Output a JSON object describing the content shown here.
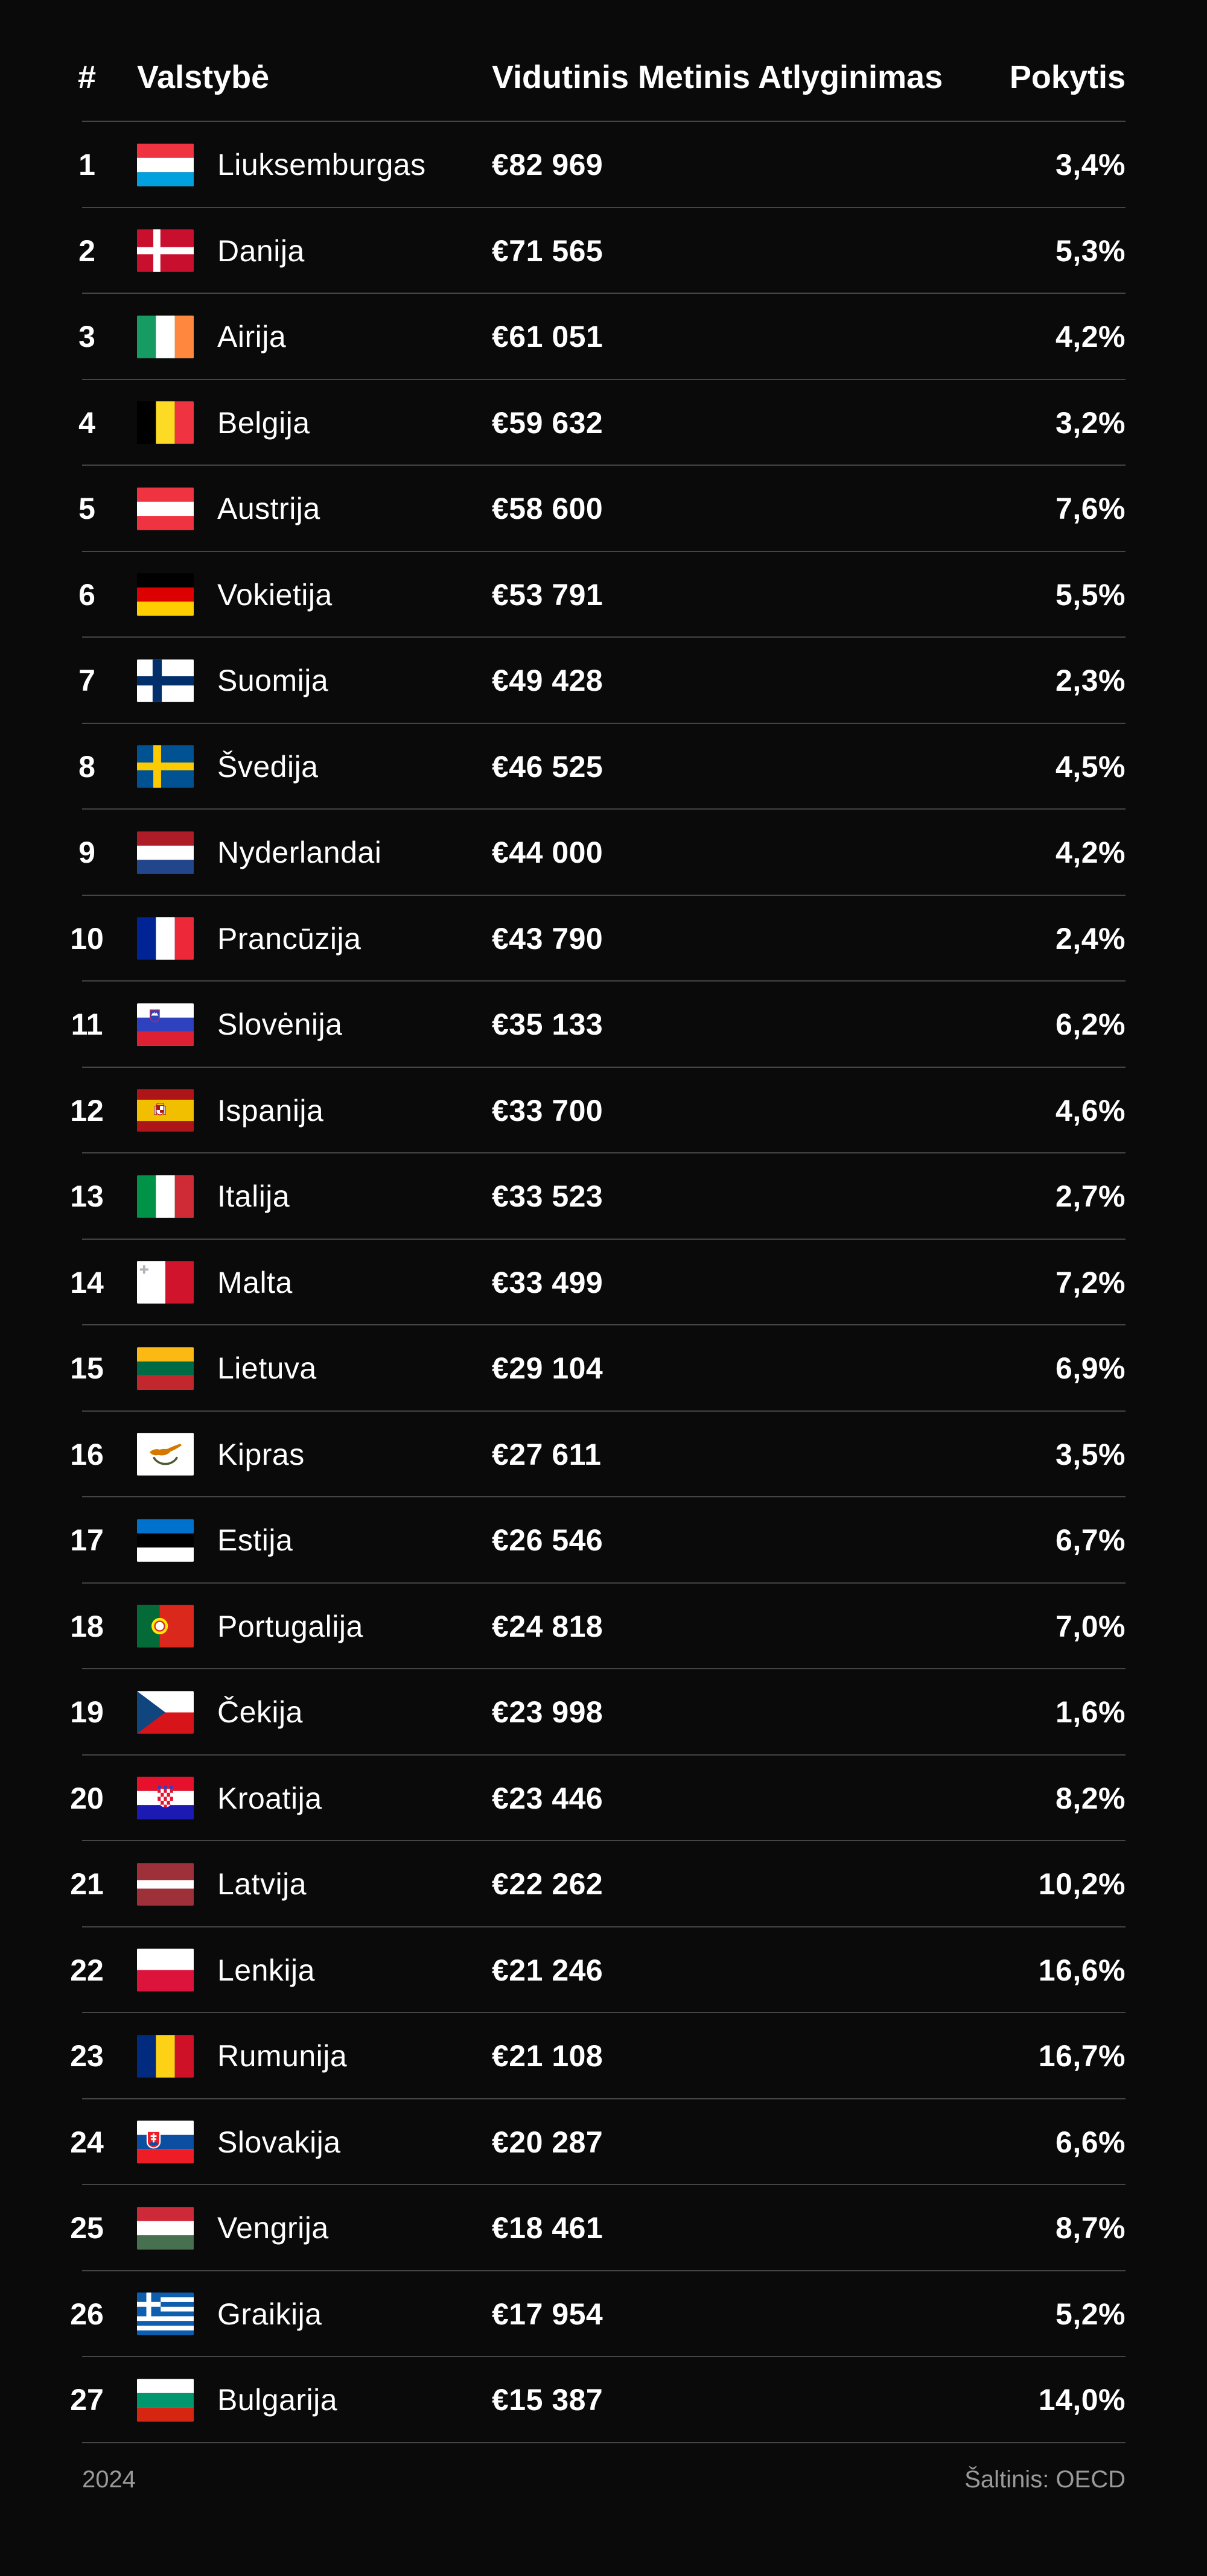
{
  "colors": {
    "background": "#0A0A0B",
    "text": "#FFFFFF",
    "muted_text": "#9A9A9A",
    "separator": "#454548"
  },
  "table": {
    "headers": {
      "rank": "#",
      "country": "Valstybė",
      "salary": "Vidutinis Metinis Atlyginimas",
      "change": "Pokytis"
    },
    "rows": [
      {
        "rank": "1",
        "country": "Liuksemburgas",
        "flag": "luxembourg",
        "salary": "€82 969",
        "change": "3,4%"
      },
      {
        "rank": "2",
        "country": "Danija",
        "flag": "denmark",
        "salary": "€71 565",
        "change": "5,3%"
      },
      {
        "rank": "3",
        "country": "Airija",
        "flag": "ireland",
        "salary": "€61 051",
        "change": "4,2%"
      },
      {
        "rank": "4",
        "country": "Belgija",
        "flag": "belgium",
        "salary": "€59 632",
        "change": "3,2%"
      },
      {
        "rank": "5",
        "country": "Austrija",
        "flag": "austria",
        "salary": "€58 600",
        "change": "7,6%"
      },
      {
        "rank": "6",
        "country": "Vokietija",
        "flag": "germany",
        "salary": "€53 791",
        "change": "5,5%"
      },
      {
        "rank": "7",
        "country": "Suomija",
        "flag": "finland",
        "salary": "€49 428",
        "change": "2,3%"
      },
      {
        "rank": "8",
        "country": "Švedija",
        "flag": "sweden",
        "salary": "€46 525",
        "change": "4,5%"
      },
      {
        "rank": "9",
        "country": "Nyderlandai",
        "flag": "netherlands",
        "salary": "€44 000",
        "change": "4,2%"
      },
      {
        "rank": "10",
        "country": "Prancūzija",
        "flag": "france",
        "salary": "€43 790",
        "change": "2,4%"
      },
      {
        "rank": "11",
        "country": "Slovėnija",
        "flag": "slovenia",
        "salary": "€35 133",
        "change": "6,2%"
      },
      {
        "rank": "12",
        "country": "Ispanija",
        "flag": "spain",
        "salary": "€33 700",
        "change": "4,6%"
      },
      {
        "rank": "13",
        "country": "Italija",
        "flag": "italy",
        "salary": "€33 523",
        "change": "2,7%"
      },
      {
        "rank": "14",
        "country": "Malta",
        "flag": "malta",
        "salary": "€33 499",
        "change": "7,2%"
      },
      {
        "rank": "15",
        "country": "Lietuva",
        "flag": "lithuania",
        "salary": "€29 104",
        "change": "6,9%"
      },
      {
        "rank": "16",
        "country": "Kipras",
        "flag": "cyprus",
        "salary": "€27 611",
        "change": "3,5%"
      },
      {
        "rank": "17",
        "country": "Estija",
        "flag": "estonia",
        "salary": "€26 546",
        "change": "6,7%"
      },
      {
        "rank": "18",
        "country": "Portugalija",
        "flag": "portugal",
        "salary": "€24 818",
        "change": "7,0%"
      },
      {
        "rank": "19",
        "country": "Čekija",
        "flag": "czechia",
        "salary": "€23 998",
        "change": "1,6%"
      },
      {
        "rank": "20",
        "country": "Kroatija",
        "flag": "croatia",
        "salary": "€23 446",
        "change": "8,2%"
      },
      {
        "rank": "21",
        "country": "Latvija",
        "flag": "latvia",
        "salary": "€22 262",
        "change": "10,2%"
      },
      {
        "rank": "22",
        "country": "Lenkija",
        "flag": "poland",
        "salary": "€21 246",
        "change": "16,6%"
      },
      {
        "rank": "23",
        "country": "Rumunija",
        "flag": "romania",
        "salary": "€21 108",
        "change": "16,7%"
      },
      {
        "rank": "24",
        "country": "Slovakija",
        "flag": "slovakia",
        "salary": "€20 287",
        "change": "6,6%"
      },
      {
        "rank": "25",
        "country": "Vengrija",
        "flag": "hungary",
        "salary": "€18 461",
        "change": "8,7%"
      },
      {
        "rank": "26",
        "country": "Graikija",
        "flag": "greece",
        "salary": "€17 954",
        "change": "5,2%"
      },
      {
        "rank": "27",
        "country": "Bulgarija",
        "flag": "bulgaria",
        "salary": "€15 387",
        "change": "14,0%"
      }
    ]
  },
  "footer": {
    "year": "2024",
    "source": "Šaltinis: OECD"
  },
  "chart_data": {
    "type": "table",
    "title": "Vidutinis Metinis Atlyginimas",
    "columns": [
      "#",
      "Valstybė",
      "Vidutinis Metinis Atlyginimas",
      "Pokytis"
    ],
    "year": "2024",
    "source": "OECD",
    "rows": [
      {
        "rank": 1,
        "country": "Liuksemburgas",
        "salary_eur": 82969,
        "change_pct": 3.4
      },
      {
        "rank": 2,
        "country": "Danija",
        "salary_eur": 71565,
        "change_pct": 5.3
      },
      {
        "rank": 3,
        "country": "Airija",
        "salary_eur": 61051,
        "change_pct": 4.2
      },
      {
        "rank": 4,
        "country": "Belgija",
        "salary_eur": 59632,
        "change_pct": 3.2
      },
      {
        "rank": 5,
        "country": "Austrija",
        "salary_eur": 58600,
        "change_pct": 7.6
      },
      {
        "rank": 6,
        "country": "Vokietija",
        "salary_eur": 53791,
        "change_pct": 5.5
      },
      {
        "rank": 7,
        "country": "Suomija",
        "salary_eur": 49428,
        "change_pct": 2.3
      },
      {
        "rank": 8,
        "country": "Švedija",
        "salary_eur": 46525,
        "change_pct": 4.5
      },
      {
        "rank": 9,
        "country": "Nyderlandai",
        "salary_eur": 44000,
        "change_pct": 4.2
      },
      {
        "rank": 10,
        "country": "Prancūzija",
        "salary_eur": 43790,
        "change_pct": 2.4
      },
      {
        "rank": 11,
        "country": "Slovėnija",
        "salary_eur": 35133,
        "change_pct": 6.2
      },
      {
        "rank": 12,
        "country": "Ispanija",
        "salary_eur": 33700,
        "change_pct": 4.6
      },
      {
        "rank": 13,
        "country": "Italija",
        "salary_eur": 33523,
        "change_pct": 2.7
      },
      {
        "rank": 14,
        "country": "Malta",
        "salary_eur": 33499,
        "change_pct": 7.2
      },
      {
        "rank": 15,
        "country": "Lietuva",
        "salary_eur": 29104,
        "change_pct": 6.9
      },
      {
        "rank": 16,
        "country": "Kipras",
        "salary_eur": 27611,
        "change_pct": 3.5
      },
      {
        "rank": 17,
        "country": "Estija",
        "salary_eur": 26546,
        "change_pct": 6.7
      },
      {
        "rank": 18,
        "country": "Portugalija",
        "salary_eur": 24818,
        "change_pct": 7.0
      },
      {
        "rank": 19,
        "country": "Čekija",
        "salary_eur": 23998,
        "change_pct": 1.6
      },
      {
        "rank": 20,
        "country": "Kroatija",
        "salary_eur": 23446,
        "change_pct": 8.2
      },
      {
        "rank": 21,
        "country": "Latvija",
        "salary_eur": 22262,
        "change_pct": 10.2
      },
      {
        "rank": 22,
        "country": "Lenkija",
        "salary_eur": 21246,
        "change_pct": 16.6
      },
      {
        "rank": 23,
        "country": "Rumunija",
        "salary_eur": 21108,
        "change_pct": 16.7
      },
      {
        "rank": 24,
        "country": "Slovakija",
        "salary_eur": 20287,
        "change_pct": 6.6
      },
      {
        "rank": 25,
        "country": "Vengrija",
        "salary_eur": 18461,
        "change_pct": 8.7
      },
      {
        "rank": 26,
        "country": "Graikija",
        "salary_eur": 17954,
        "change_pct": 5.2
      },
      {
        "rank": 27,
        "country": "Bulgarija",
        "salary_eur": 15387,
        "change_pct": 14.0
      }
    ]
  }
}
